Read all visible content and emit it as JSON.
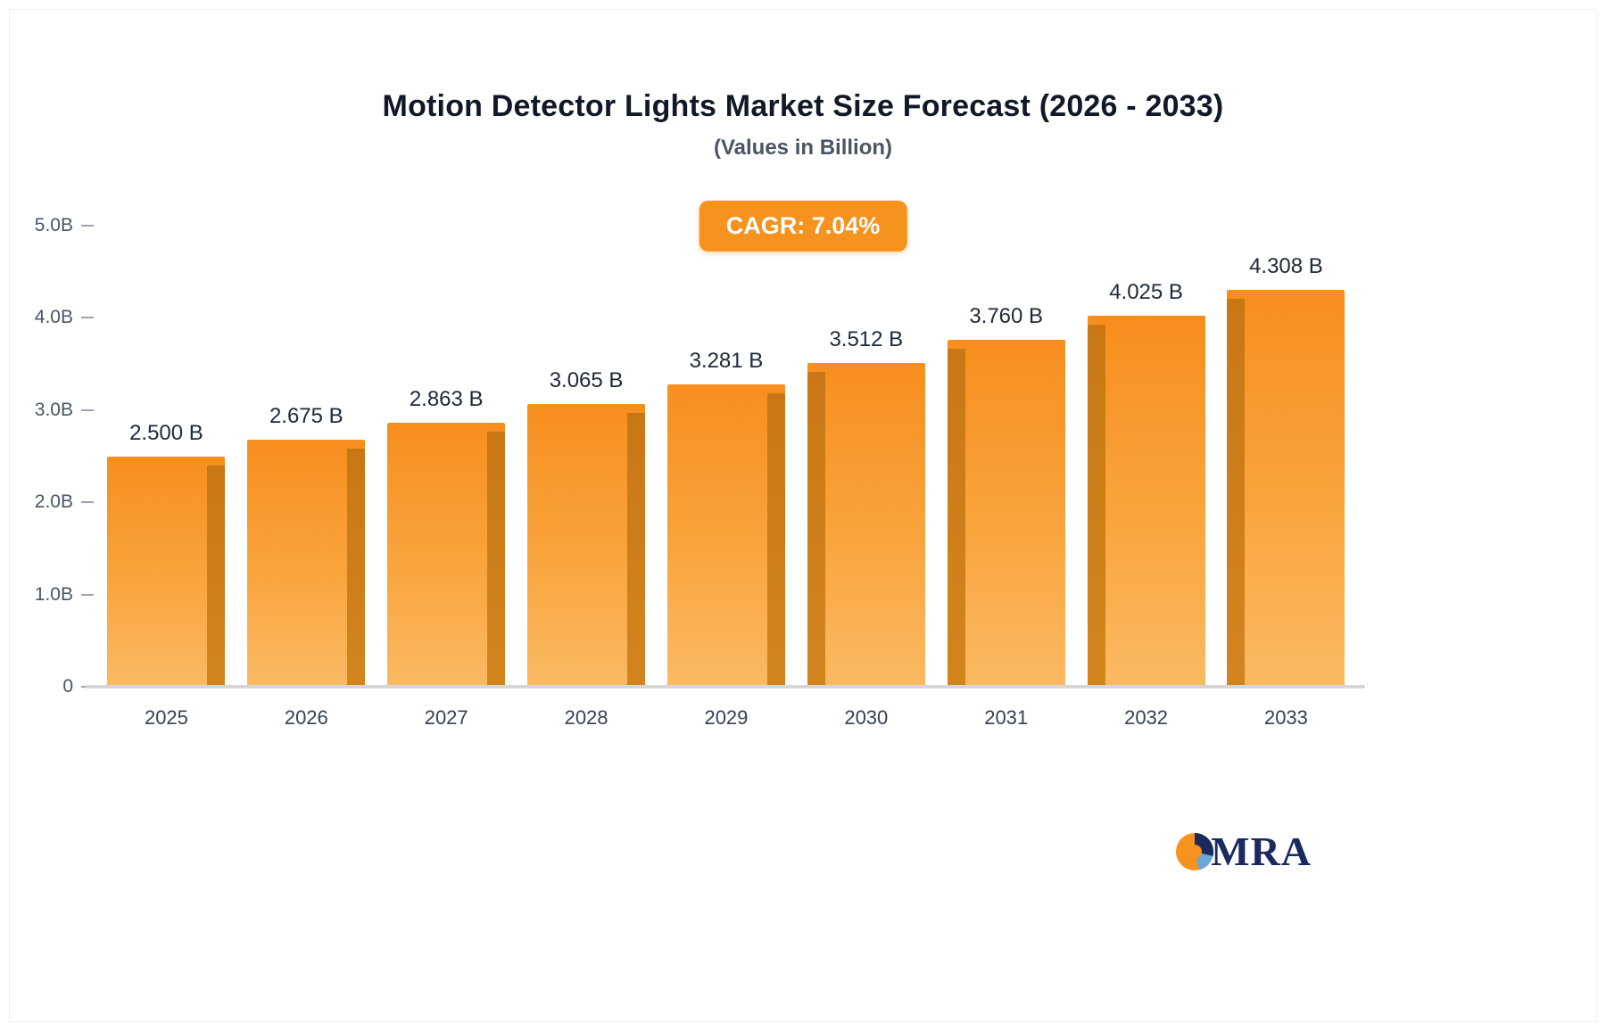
{
  "header": {
    "title": "Motion Detector Lights Market Size Forecast (2026 - 2033)",
    "subtitle": "(Values in Billion)"
  },
  "badge": {
    "label": "CAGR: 7.04%",
    "bg_color": "#f6921e",
    "text_color": "#ffffff"
  },
  "chart_data": {
    "type": "bar",
    "title": "Motion Detector Lights Market Size Forecast (2026 - 2033)",
    "subtitle": "(Values in Billion)",
    "categories": [
      "2025",
      "2026",
      "2027",
      "2028",
      "2029",
      "2030",
      "2031",
      "2032",
      "2033"
    ],
    "values": [
      2.5,
      2.675,
      2.863,
      3.065,
      3.281,
      3.512,
      3.76,
      4.025,
      4.308
    ],
    "value_labels": [
      "2.500 B",
      "2.675 B",
      "2.863 B",
      "3.065 B",
      "3.281 B",
      "3.512 B",
      "3.760 B",
      "4.025 B",
      "4.308 B"
    ],
    "xlabel": "",
    "ylabel": "",
    "ylim": [
      0,
      5
    ],
    "y_ticks": [
      "0",
      "1.0B",
      "2.0B",
      "3.0B",
      "4.0B",
      "5.0B"
    ],
    "grid": false,
    "legend": false,
    "bar_color_top": "#f78e1e",
    "bar_color_bottom": "#fbbа63",
    "bar_side_color": "#c87714",
    "annotation": "CAGR: 7.04%"
  },
  "logo": {
    "text": "MRA",
    "text_color": "#1b2a5e",
    "icon_colors": {
      "orange": "#f6921e",
      "dark_blue": "#1b2a5e",
      "light_blue": "#6aa8d8"
    }
  }
}
